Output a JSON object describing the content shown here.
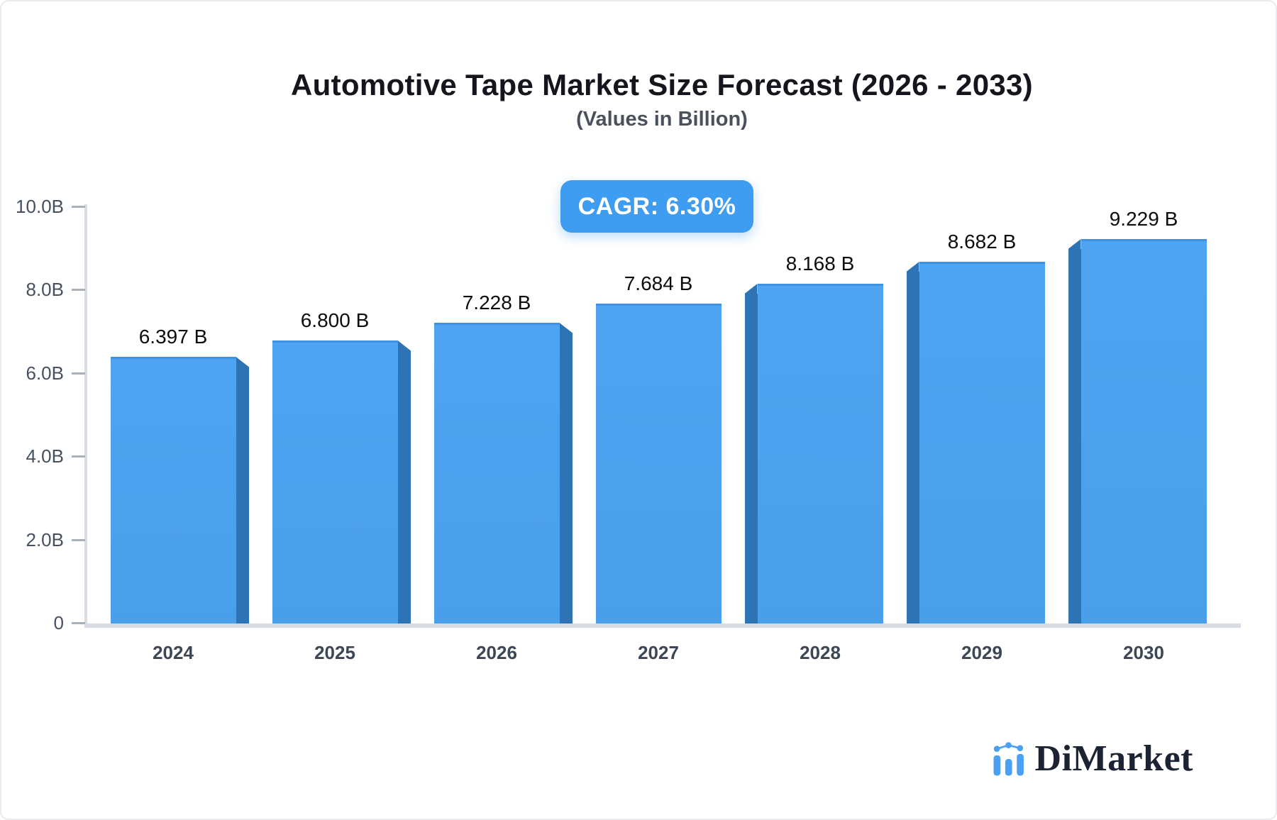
{
  "header": {
    "title": "Automotive Tape Market Size Forecast (2026 - 2033)",
    "subtitle": "(Values in Billion)",
    "cagr_label": "CAGR: 6.30%"
  },
  "chart_data": {
    "type": "bar",
    "title": "Automotive Tape Market Size Forecast (2026 - 2033)",
    "subtitle": "(Values in Billion)",
    "cagr": "6.30%",
    "categories": [
      "2024",
      "2025",
      "2026",
      "2027",
      "2028",
      "2029",
      "2030"
    ],
    "values": [
      6.397,
      6.8,
      7.228,
      7.684,
      8.168,
      8.682,
      9.229
    ],
    "bar_labels": [
      "6.397 B",
      "6.800 B",
      "7.228 B",
      "7.684 B",
      "8.168 B",
      "8.682 B",
      "9.229 B"
    ],
    "y_ticks": [
      {
        "label": "10.0B",
        "value": 10
      },
      {
        "label": "8.0B",
        "value": 8
      },
      {
        "label": "6.0B",
        "value": 6
      },
      {
        "label": "4.0B",
        "value": 4
      },
      {
        "label": "2.0B",
        "value": 2
      },
      {
        "label": "0",
        "value": 0
      }
    ],
    "ylim": [
      0,
      10
    ],
    "xlabel": "",
    "ylabel": "",
    "grid": false,
    "legend_position": "none",
    "colors": {
      "bar_face": "#4BA2EF",
      "bar_face_top_edge": "#3E92E0",
      "bar_side_shadow": "#2E74B4",
      "badge_background": "#3E9CF1",
      "axis_line": "#d9dde3",
      "tick_dash": "#a9b1bb",
      "title_text": "#15161d",
      "axis_text": "#47505e"
    }
  },
  "branding": {
    "logo_text": "DiMarket",
    "logo_icon": "bar-chart-sparkline-icon",
    "logo_icon_color": "#4AA0F5",
    "logo_text_color": "#1c2433"
  }
}
